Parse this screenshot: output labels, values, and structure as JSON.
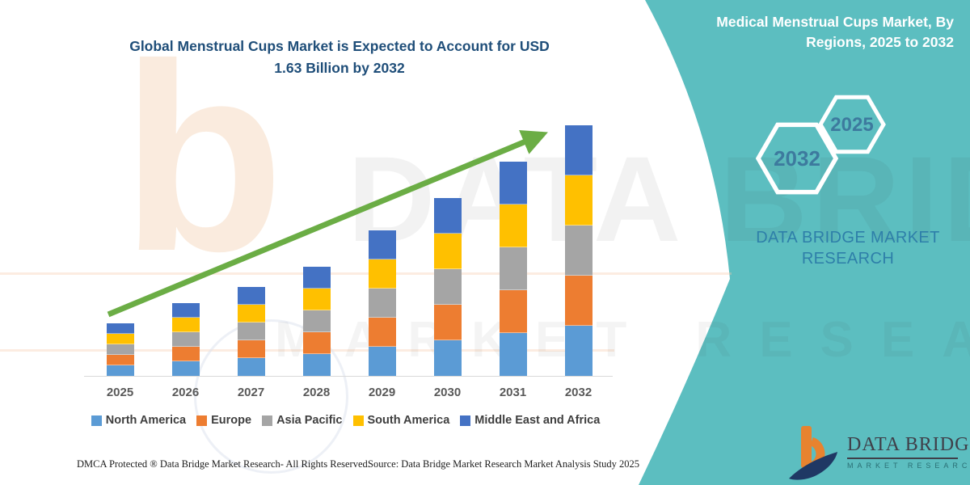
{
  "chart_section": {
    "title_line1": "Global Menstrual Cups Market is Expected to Account for USD",
    "title_line2": "1.63 Billion by 2032",
    "title_color": "#1F4E79",
    "footer_dmca": "DMCA Protected ® Data Bridge Market Research-  All Rights Reserved.",
    "footer_source": "Source: Data Bridge Market Research  Market Analysis Study 2025"
  },
  "sidebar": {
    "background_color": "#5CBEC0",
    "heading_line1": "Medical Menstrual Cups Market, By",
    "heading_line2": "Regions, 2025 to 2032",
    "hexagons": [
      {
        "label": "2032"
      },
      {
        "label": "2025"
      }
    ],
    "brand_line1": "DATA BRIDGE MARKET",
    "brand_line2": "RESEARCH",
    "logo": {
      "glyph": "b",
      "name": "DATA BRIDGE",
      "tagline": "MARKET RESEARCH",
      "glyph_color": "#E8832F",
      "swoosh_color": "#1F3864"
    }
  },
  "watermark": {
    "big_text": "DATA BRIDGE",
    "sub_text": "MARKET RESEARCH",
    "glyph": "b"
  },
  "chart_data": {
    "type": "bar",
    "stacked": true,
    "title": "Global Menstrual Cups Market is Expected to Account for USD 1.63 Billion by 2032",
    "unit": "USD Billion",
    "categories": [
      "2025",
      "2026",
      "2027",
      "2028",
      "2029",
      "2030",
      "2031",
      "2032"
    ],
    "totals": [
      0.35,
      0.46,
      0.58,
      0.7,
      0.93,
      1.16,
      1.4,
      1.63
    ],
    "series": [
      {
        "name": "North America",
        "color": "#5B9BD5",
        "values": [
          0.07,
          0.092,
          0.116,
          0.14,
          0.186,
          0.232,
          0.28,
          0.326
        ]
      },
      {
        "name": "Europe",
        "color": "#ED7D31",
        "values": [
          0.07,
          0.092,
          0.116,
          0.14,
          0.186,
          0.232,
          0.28,
          0.326
        ]
      },
      {
        "name": "Asia Pacific",
        "color": "#A5A5A5",
        "values": [
          0.07,
          0.092,
          0.116,
          0.14,
          0.186,
          0.232,
          0.28,
          0.326
        ]
      },
      {
        "name": "South America",
        "color": "#FFC000",
        "values": [
          0.07,
          0.092,
          0.116,
          0.14,
          0.186,
          0.232,
          0.28,
          0.326
        ]
      },
      {
        "name": "Middle East and Africa",
        "color": "#4472C4",
        "values": [
          0.07,
          0.092,
          0.116,
          0.14,
          0.186,
          0.232,
          0.28,
          0.326
        ]
      }
    ],
    "values_estimated_from_pixels": true,
    "ylim": [
      0,
      1.7
    ],
    "xlabel": "",
    "ylabel": "",
    "grid": false,
    "legend_position": "bottom",
    "trend_arrow_color": "#6BAD45",
    "axis_line_color": "#D9D9D9"
  }
}
